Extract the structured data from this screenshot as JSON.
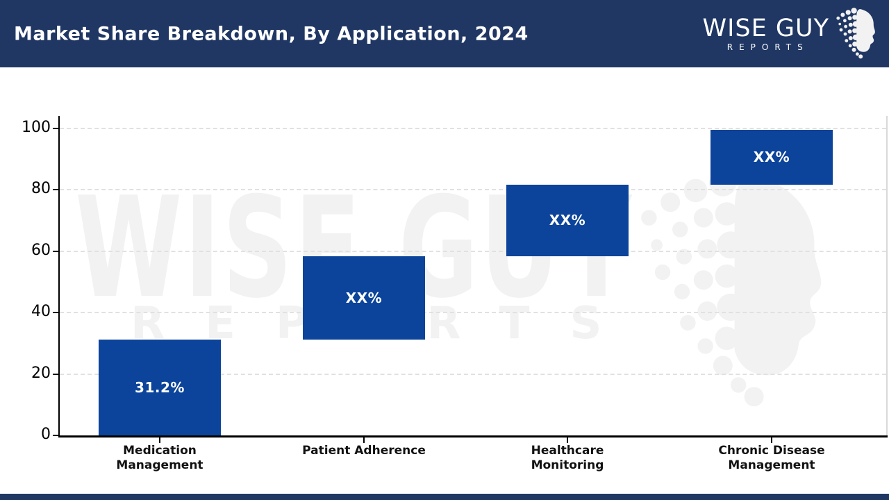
{
  "header": {
    "title": "Market Share Breakdown, By Application, 2024",
    "logo": {
      "line1": "WISE GUY",
      "line2": "REPORTS"
    }
  },
  "watermark": {
    "line1": "WISE GUY",
    "line2": "REPORTS"
  },
  "chart_data": {
    "type": "bar",
    "subtype": "waterfall",
    "title": "Market Share Breakdown, By Application, 2024",
    "categories": [
      "Medication Management",
      "Patient Adherence",
      "Healthcare Monitoring",
      "Chronic Disease Management"
    ],
    "category_label_lines": [
      [
        "Medication",
        "Management"
      ],
      [
        "Patient Adherence"
      ],
      [
        "Healthcare",
        "Monitoring"
      ],
      [
        "Chronic Disease",
        "Management"
      ]
    ],
    "bars": [
      {
        "name": "Medication Management",
        "start": 0,
        "end": 31.2,
        "value_label": "31.2%"
      },
      {
        "name": "Patient Adherence",
        "start": 31.2,
        "end": 58.4,
        "value_label": "XX%"
      },
      {
        "name": "Healthcare Monitoring",
        "start": 58.4,
        "end": 81.6,
        "value_label": "XX%"
      },
      {
        "name": "Chronic Disease Management",
        "start": 81.6,
        "end": 99.5,
        "value_label": "XX%"
      }
    ],
    "xlabel": "",
    "ylabel": "",
    "ylim": [
      0,
      100
    ],
    "yticks": [
      "0",
      "20",
      "40",
      "60",
      "80",
      "100"
    ],
    "grid": {
      "horizontal": true,
      "style": "dashed",
      "color": "#e1e1e1"
    },
    "legend": "none",
    "colors": {
      "bar": "#0b449a",
      "bar_label": "#ffffff",
      "header_bg": "#203764",
      "footer_bg": "#203764",
      "axis": "#000000",
      "grid": "#e1e1e1",
      "watermark": "#f2f2f2"
    }
  }
}
